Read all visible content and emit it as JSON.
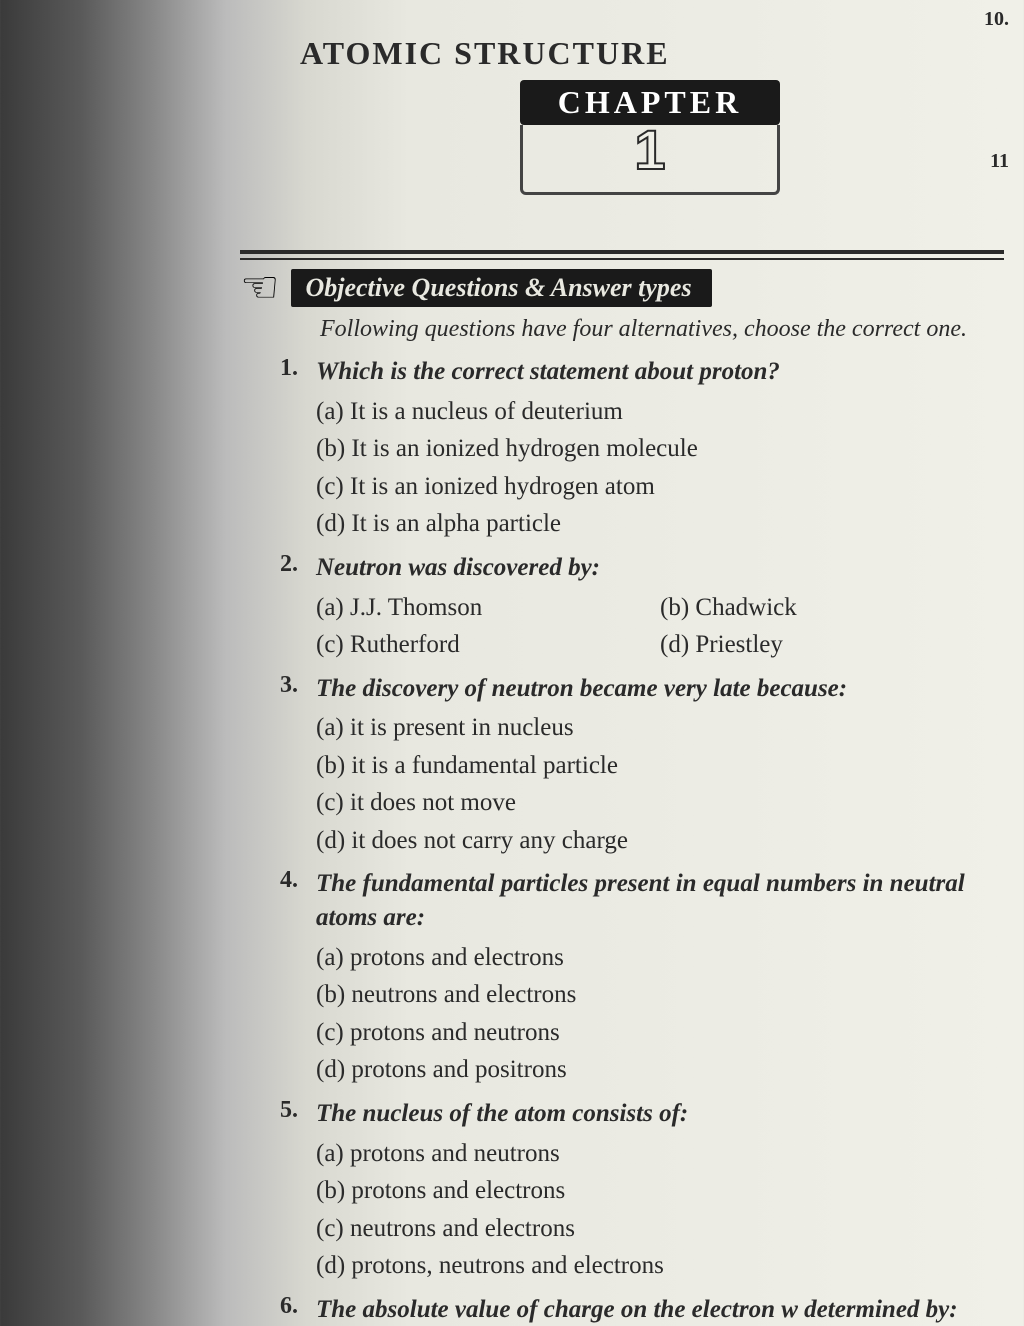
{
  "topRightNum": "10.",
  "sideNum": "11",
  "title": "ATOMIC STRUCTURE",
  "chapterLabel": "CHAPTER",
  "chapterNum": "1",
  "sectionTitle": "Objective Questions & Answer types",
  "intro": "Following questions have four alternatives, choose the correct one.",
  "questions": [
    {
      "num": "1.",
      "text": "Which is the correct statement about proton?",
      "layout": "single",
      "options": [
        "(a) It is a nucleus of deuterium",
        "(b) It is an ionized hydrogen molecule",
        "(c) It is an ionized hydrogen atom",
        "(d) It is an alpha particle"
      ]
    },
    {
      "num": "2.",
      "text": "Neutron was discovered by:",
      "layout": "two-col",
      "options": [
        "(a) J.J. Thomson",
        "(b) Chadwick",
        "(c) Rutherford",
        "(d) Priestley"
      ]
    },
    {
      "num": "3.",
      "text": "The discovery of neutron became very late because:",
      "layout": "single",
      "options": [
        "(a) it is present in nucleus",
        "(b) it is a fundamental particle",
        "(c) it does not move",
        "(d) it does not carry any charge"
      ]
    },
    {
      "num": "4.",
      "text": "The fundamental particles present in equal numbers in neutral atoms are:",
      "layout": "single",
      "options": [
        "(a) protons and electrons",
        "(b) neutrons and electrons",
        "(c) protons and neutrons",
        "(d) protons and positrons"
      ]
    },
    {
      "num": "5.",
      "text": "The nucleus of the atom consists of:",
      "layout": "single",
      "options": [
        "(a) protons and neutrons",
        "(b) protons and electrons",
        "(c) neutrons and electrons",
        "(d) protons, neutrons and electrons"
      ]
    },
    {
      "num": "6.",
      "text": "The absolute value of charge on the electron w determined by:",
      "layout": "single",
      "options": []
    }
  ]
}
